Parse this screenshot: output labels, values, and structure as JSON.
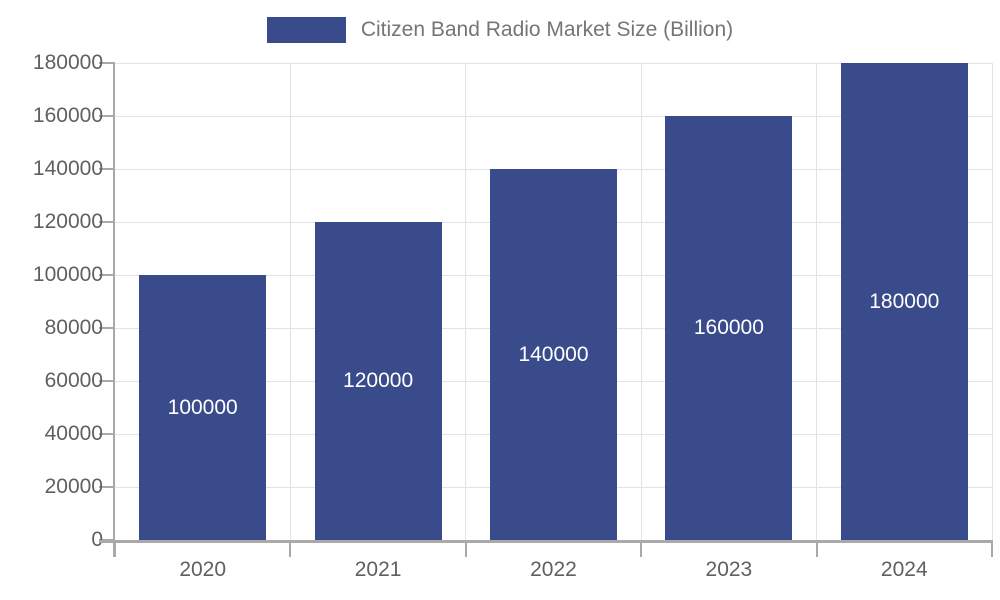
{
  "legend": {
    "label": "Citizen Band Radio Market Size (Billion)"
  },
  "colors": {
    "bar": "#3A4B8C",
    "grid": "#e3e3e3",
    "axis": "#a9a9a9",
    "tick": "#a9a9a9",
    "tick_label": "#606060",
    "legend_text": "#757575",
    "data_label": "#ffffff",
    "background": "#ffffff"
  },
  "chart_data": {
    "type": "bar",
    "title": "Citizen Band Radio Market Size (Billion)",
    "categories": [
      "2020",
      "2021",
      "2022",
      "2023",
      "2024"
    ],
    "values": [
      100000,
      120000,
      140000,
      160000,
      180000
    ],
    "data_labels": [
      "100000",
      "120000",
      "140000",
      "160000",
      "180000"
    ],
    "y_tick_labels": [
      "0",
      "20000",
      "40000",
      "60000",
      "80000",
      "100000",
      "120000",
      "140000",
      "160000",
      "180000"
    ],
    "xlabel": "",
    "ylabel": "",
    "ylim": [
      0,
      180000
    ],
    "ytick_step": 20000,
    "grid": true,
    "legend_position": "top-center",
    "bar_label_position": "center-inside"
  }
}
